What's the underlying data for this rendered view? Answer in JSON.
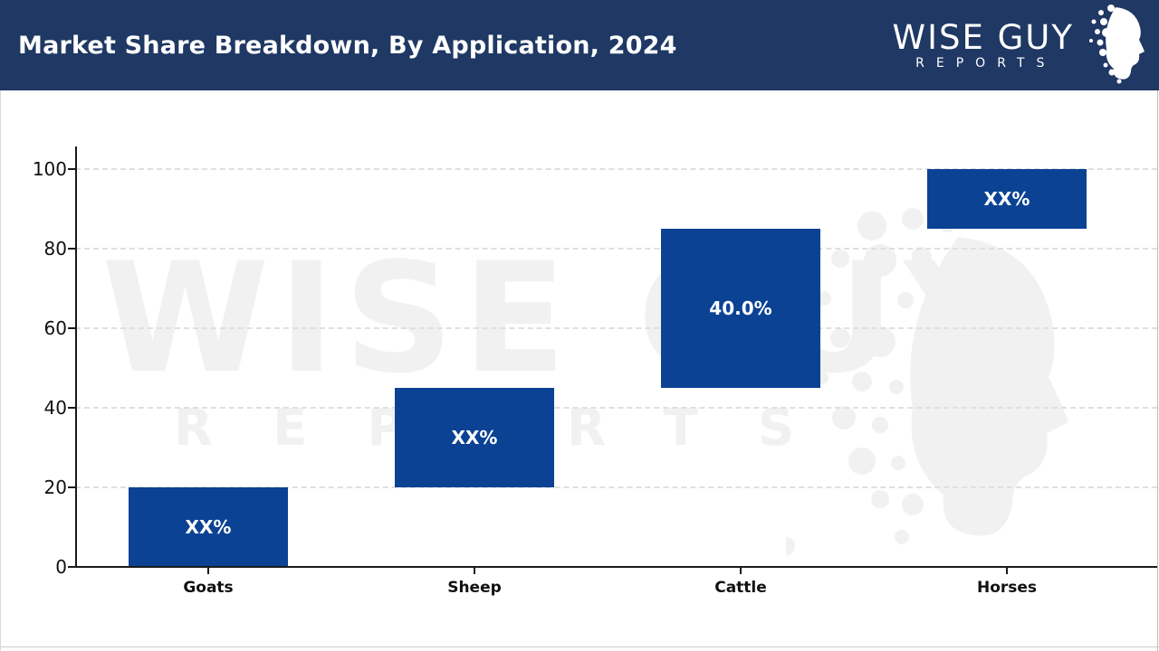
{
  "header": {
    "title": "Market Share Breakdown, By Application, 2024",
    "logo_line1": "WISE GUY",
    "logo_line2": "REPORTS"
  },
  "watermark": {
    "line1": "WISE GUY",
    "line2": "REPORTS"
  },
  "chart_data": {
    "type": "bar",
    "subtype": "floating-segment-waterfall",
    "title": "Market Share Breakdown, By Application, 2024",
    "categories": [
      "Goats",
      "Sheep",
      "Cattle",
      "Horses"
    ],
    "series": [
      {
        "name": "Market Share (%)",
        "segments": [
          {
            "category": "Goats",
            "start": 0,
            "end": 20,
            "label": "XX%"
          },
          {
            "category": "Sheep",
            "start": 20,
            "end": 45,
            "label": "XX%"
          },
          {
            "category": "Cattle",
            "start": 45,
            "end": 85,
            "label": "40.0%"
          },
          {
            "category": "Horses",
            "start": 85,
            "end": 100,
            "label": "XX%"
          }
        ]
      }
    ],
    "xlabel": "",
    "ylabel": "",
    "ylim": [
      0,
      105
    ],
    "yticks": [
      0,
      20,
      40,
      60,
      80,
      100
    ],
    "grid": "horizontal-dashed",
    "legend": "none"
  },
  "colors": {
    "header_bg": "#1F3864",
    "bar": "#0B4294",
    "bar_label": "#FFFFFF",
    "gridline": "#DFDFDF",
    "axis": "#1A1A1A",
    "watermark": "#F1F1F1"
  }
}
